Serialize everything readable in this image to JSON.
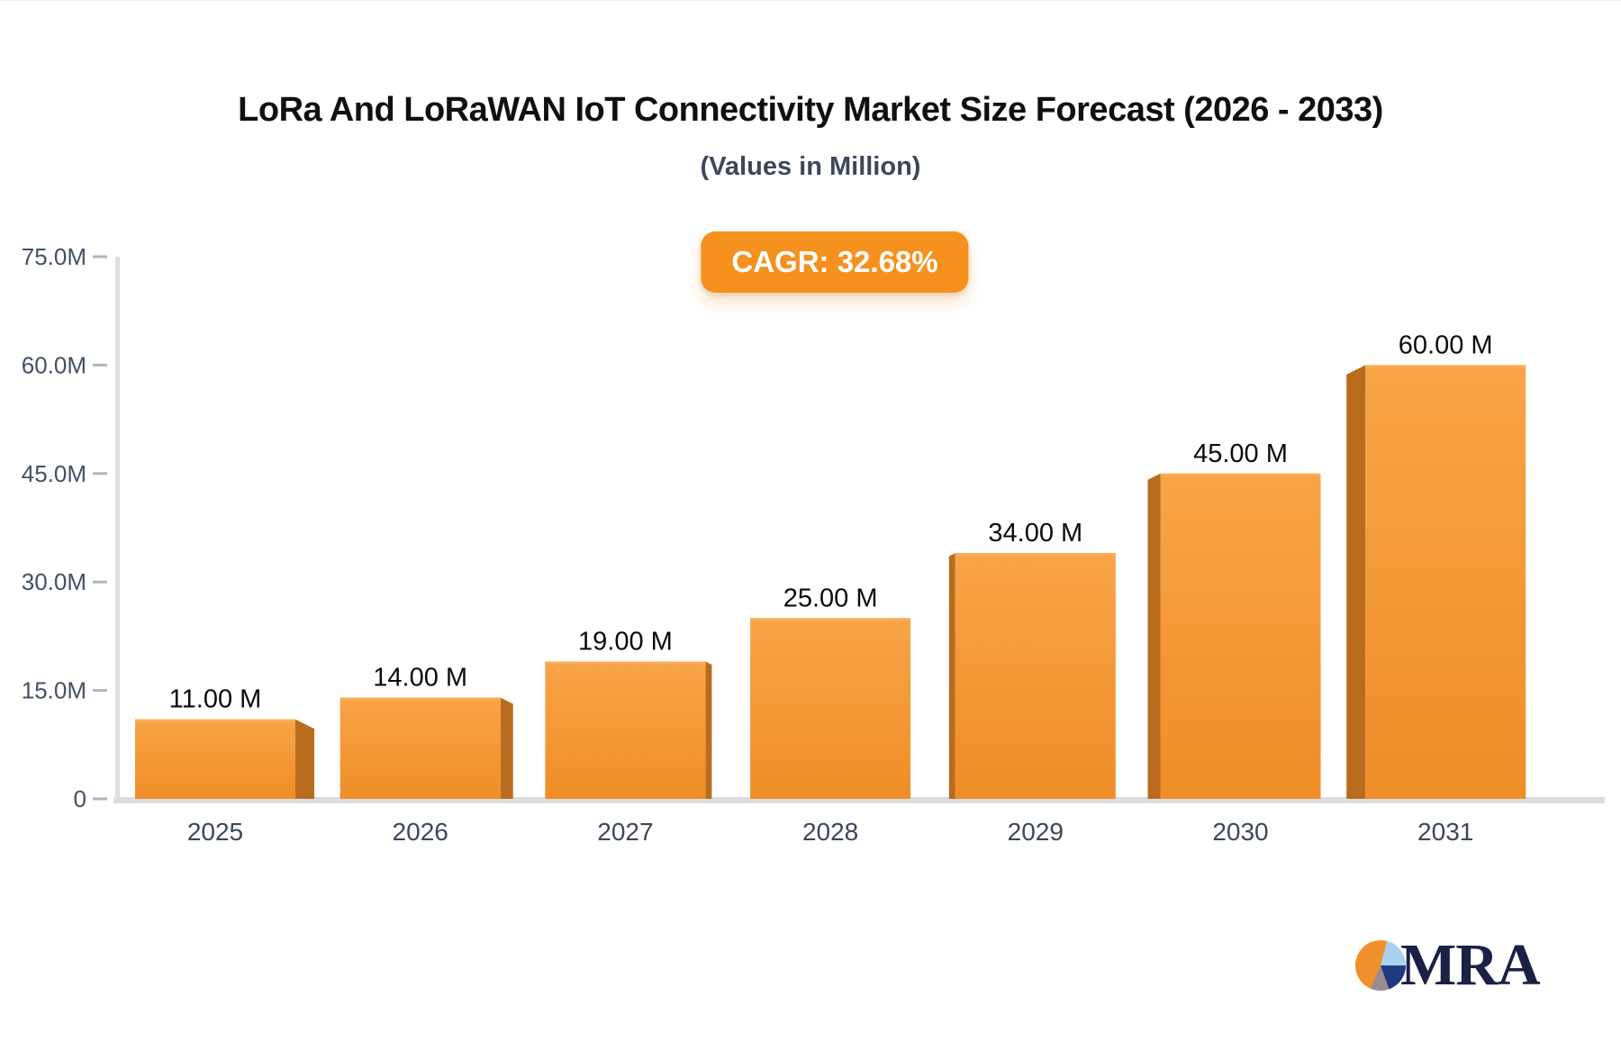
{
  "header": {
    "title": "LoRa And LoRaWAN IoT Connectivity Market Size Forecast (2026 - 2033)",
    "subtitle": "(Values in Million)"
  },
  "badge": {
    "label": "CAGR: 32.68%",
    "background": "#F6911E",
    "text_color": "#FFFFFF"
  },
  "chart_data": {
    "type": "bar",
    "title": "LoRa And LoRaWAN IoT Connectivity Market Size Forecast (2026 - 2033)",
    "subtitle": "(Values in Million)",
    "annotation": "CAGR: 32.68%",
    "categories": [
      "2025",
      "2026",
      "2027",
      "2028",
      "2029",
      "2030",
      "2031"
    ],
    "values": [
      11,
      14,
      19,
      25,
      34,
      45,
      60
    ],
    "value_labels": [
      "11.00 M",
      "14.00 M",
      "19.00 M",
      "25.00 M",
      "34.00 M",
      "45.00 M",
      "60.00 M"
    ],
    "unit": "Million",
    "xlabel": "",
    "ylabel": "",
    "ylim": [
      0,
      75
    ],
    "y_ticks": [
      {
        "value": 75,
        "label": "75.0M"
      },
      {
        "value": 60,
        "label": "60.0M"
      },
      {
        "value": 45,
        "label": "45.0M"
      },
      {
        "value": 30,
        "label": "30.0M"
      },
      {
        "value": 15,
        "label": "15.0M"
      },
      {
        "value": 0,
        "label": "0"
      }
    ],
    "grid": false,
    "legend": null,
    "bar_style": "3d-perspective-vanishing-center",
    "palette": {
      "bar_face_top": "#F8A447",
      "bar_face_bottom": "#EF8D27",
      "bar_top_edge": "#F9AD58",
      "bar_side": "#B96C1D",
      "axis_line": "#DBDEE2",
      "baseline": "#DBDDE0",
      "tick_mark": "#AFB4BD",
      "tick_label_color": "#445064",
      "category_label_color": "#3D4758",
      "value_label_color": "#0B0B0B"
    }
  },
  "branding": {
    "logo_icon": "pie-chart-icon",
    "logo_text": "MRA",
    "logo_text_color": "#1A2145",
    "pie_slice_colors": [
      "#F0912D",
      "#A8D1F0",
      "#1F3A80",
      "#9A8C92"
    ]
  }
}
